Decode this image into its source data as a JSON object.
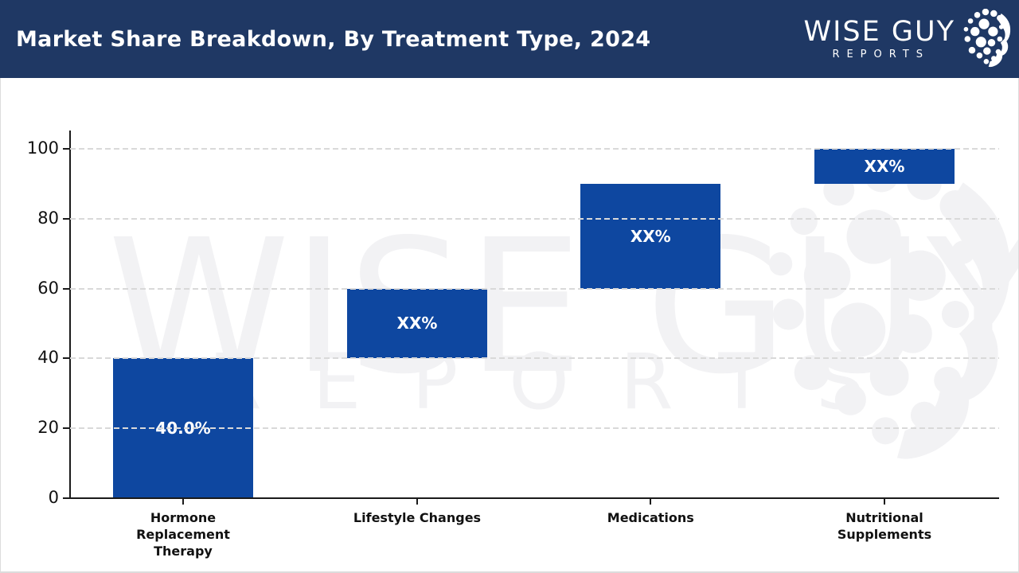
{
  "header": {
    "title": "Market Share Breakdown, By Treatment Type, 2024",
    "logo_line1": "WISE GUY",
    "logo_line2": "REPORTS"
  },
  "watermark": {
    "line1": "WISE GUY",
    "line2": "REPORTS"
  },
  "chart_data": {
    "type": "bar",
    "subtype": "waterfall",
    "title": "Market Share Breakdown, By Treatment Type, 2024",
    "categories": [
      [
        "Hormone",
        "Replacement",
        "Therapy"
      ],
      [
        "Lifestyle Changes"
      ],
      [
        "Medications"
      ],
      [
        "Nutritional",
        "Supplements"
      ]
    ],
    "segments": [
      {
        "category": "Hormone Replacement Therapy",
        "start": 0,
        "end": 40,
        "value": 40,
        "label": "40.0%"
      },
      {
        "category": "Lifestyle Changes",
        "start": 40,
        "end": 60,
        "value": 20,
        "label": "XX%"
      },
      {
        "category": "Medications",
        "start": 60,
        "end": 90,
        "value": 30,
        "label": "XX%"
      },
      {
        "category": "Nutritional Supplements",
        "start": 90,
        "end": 100,
        "value": 10,
        "label": "XX%"
      }
    ],
    "y_ticks": [
      0,
      20,
      40,
      60,
      80,
      100
    ],
    "ylim": [
      0,
      105
    ],
    "grid": "horizontal-dashed",
    "legend": "none",
    "xlabel": "",
    "ylabel": ""
  },
  "colors": {
    "header_bg": "#1f3864",
    "bar": "#0e47a0",
    "bar_label": "#ffffff",
    "grid": "#d9d9d9",
    "axis": "#1a1a1a",
    "watermark": "#f2f2f4"
  }
}
